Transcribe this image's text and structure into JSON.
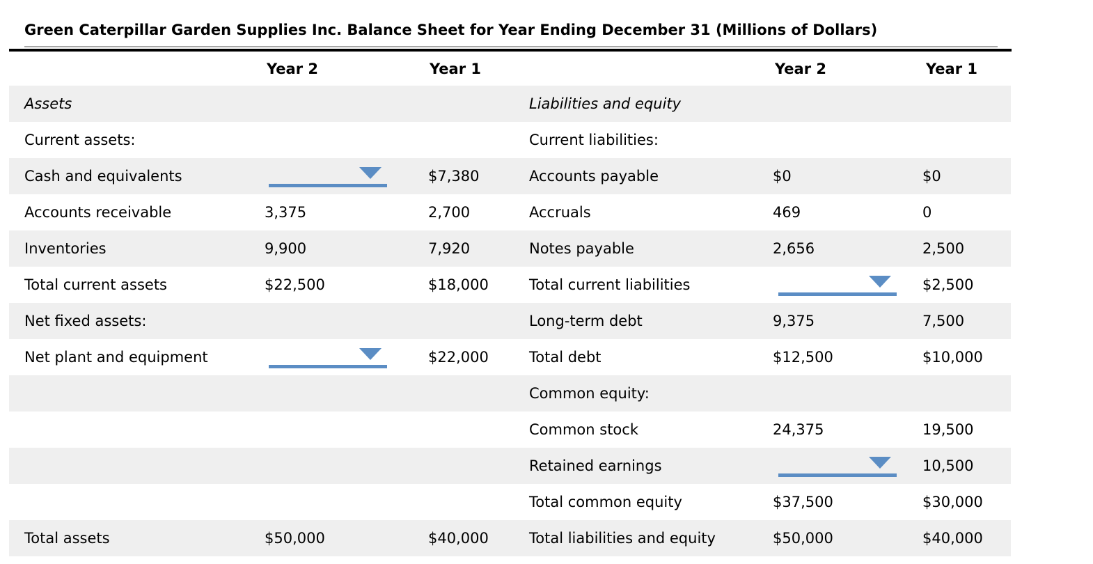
{
  "title": "Green Caterpillar Garden Supplies Inc. Balance Sheet for Year Ending December 31 (Millions of Dollars)",
  "columns": {
    "left_year2": "Year 2",
    "left_year1": "Year 1",
    "right_year2": "Year 2",
    "right_year1": "Year 1"
  },
  "colors": {
    "accent_blue": "#5b8dc4",
    "row_shade": "#efefef"
  },
  "icons": {
    "dropdown_arrow": "triangle-down"
  },
  "table": {
    "rows": [
      {
        "italic": true,
        "cells": [
          "Assets",
          "",
          "",
          "Liabilities and equity",
          "",
          ""
        ]
      },
      {
        "italic": false,
        "cells": [
          "Current assets:",
          "",
          "",
          "Current liabilities:",
          "",
          ""
        ]
      },
      {
        "italic": false,
        "cells": [
          "Cash and equivalents",
          {
            "control": "dropdown"
          },
          "$7,380",
          "Accounts payable",
          "$0",
          "$0"
        ]
      },
      {
        "italic": false,
        "cells": [
          "Accounts receivable",
          "3,375",
          "2,700",
          "Accruals",
          "469",
          "0"
        ]
      },
      {
        "italic": false,
        "cells": [
          "Inventories",
          "9,900",
          "7,920",
          "Notes payable",
          "2,656",
          "2,500"
        ]
      },
      {
        "italic": false,
        "cells": [
          "Total current assets",
          "$22,500",
          "$18,000",
          "Total current liabilities",
          {
            "control": "dropdown"
          },
          "$2,500"
        ]
      },
      {
        "italic": false,
        "cells": [
          "Net fixed assets:",
          "",
          "",
          "Long-term debt",
          "9,375",
          "7,500"
        ]
      },
      {
        "italic": false,
        "cells": [
          "Net plant and equipment",
          {
            "control": "dropdown"
          },
          "$22,000",
          "Total debt",
          "$12,500",
          "$10,000"
        ]
      },
      {
        "italic": false,
        "cells": [
          "",
          "",
          "",
          "Common equity:",
          "",
          ""
        ]
      },
      {
        "italic": false,
        "cells": [
          "",
          "",
          "",
          "Common stock",
          "24,375",
          "19,500"
        ]
      },
      {
        "italic": false,
        "cells": [
          "",
          "",
          "",
          "Retained earnings",
          {
            "control": "dropdown"
          },
          "10,500"
        ]
      },
      {
        "italic": false,
        "cells": [
          "",
          "",
          "",
          "Total common equity",
          "$37,500",
          "$30,000"
        ]
      },
      {
        "italic": false,
        "cells": [
          "Total assets",
          "$50,000",
          "$40,000",
          "Total liabilities and equity",
          "$50,000",
          "$40,000"
        ]
      }
    ]
  }
}
